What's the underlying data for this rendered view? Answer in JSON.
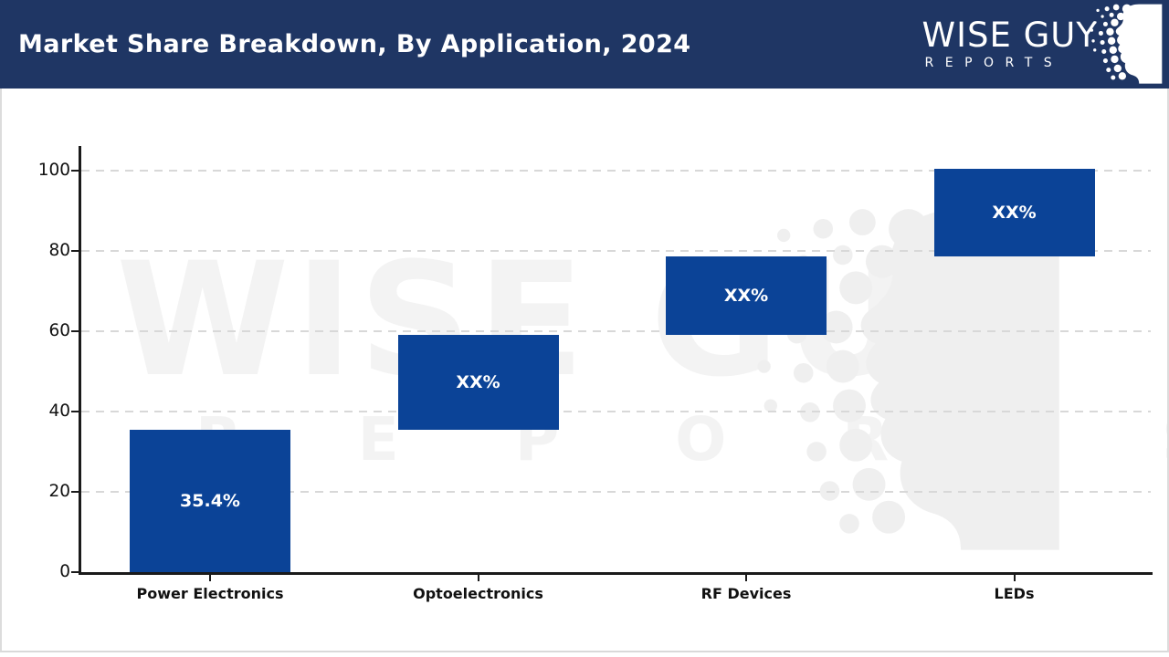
{
  "header": {
    "title": "Market Share Breakdown, By Application, 2024",
    "logo_line1": "WISE GUY",
    "logo_line2": "REPORTS"
  },
  "watermark": {
    "line1": "WISE GUY",
    "line2": "R E P O R T S"
  },
  "colors": {
    "header_bg": "#1f3664",
    "bar": "#0b4397",
    "grid": "#d8d8d8",
    "axis": "#1a1a1a",
    "bar_label": "#ffffff"
  },
  "chart_data": {
    "type": "bar",
    "subtype": "waterfall",
    "title": "Market Share Breakdown, By Application, 2024",
    "categories": [
      "Power Electronics",
      "Optoelectronics",
      "RF Devices",
      "LEDs"
    ],
    "segments": [
      {
        "category": "Power Electronics",
        "start": 0,
        "end": 35.4,
        "label": "35.4%"
      },
      {
        "category": "Optoelectronics",
        "start": 35.4,
        "end": 59,
        "label": "XX%"
      },
      {
        "category": "RF Devices",
        "start": 59,
        "end": 78.7,
        "label": "XX%"
      },
      {
        "category": "LEDs",
        "start": 78.7,
        "end": 100.4,
        "label": "XX%"
      }
    ],
    "y_ticks": [
      0,
      20,
      40,
      60,
      80,
      100
    ],
    "ylim": [
      0,
      106
    ],
    "grid": "dashed-horizontal",
    "legend": "none",
    "xlabel": "",
    "ylabel": ""
  }
}
